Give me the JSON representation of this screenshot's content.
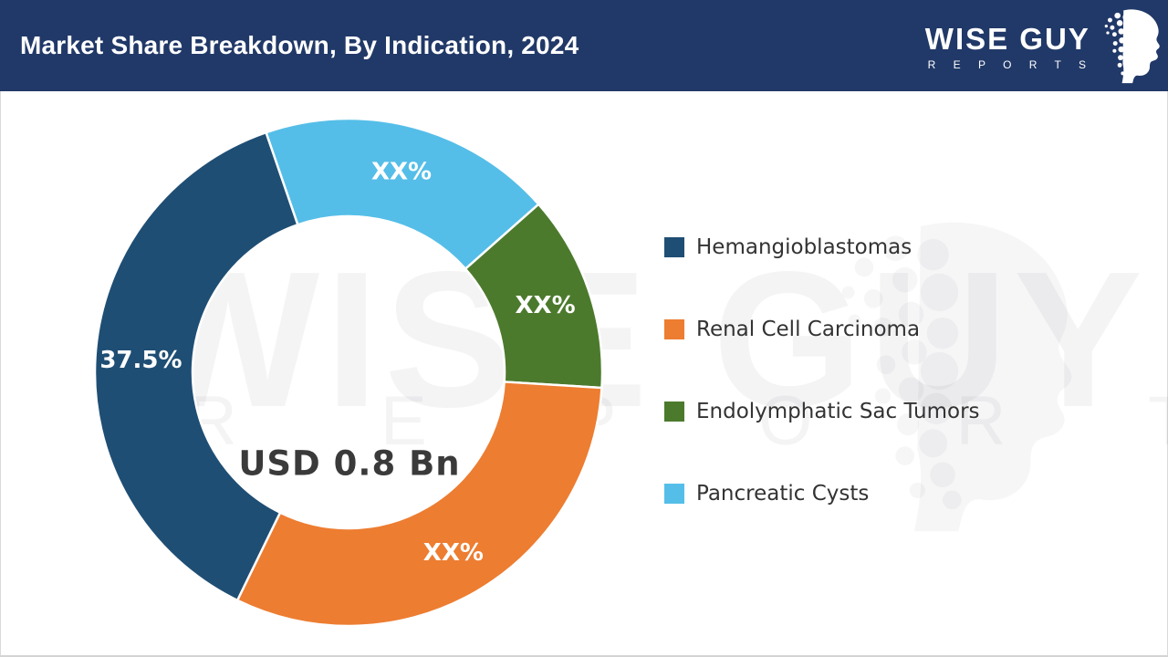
{
  "header": {
    "title": "Market Share Breakdown, By Indication, 2024",
    "logo": {
      "name": "WISE GUY",
      "tagline": "R E P O R T S"
    }
  },
  "watermark": {
    "line1": "WISE GUY",
    "line2": "R E P O R T S"
  },
  "chart_data": {
    "type": "donut",
    "title": "Market Share Breakdown, By Indication, 2024",
    "center_label": "USD 0.8 Bn",
    "start_angle_deg": -19,
    "direction": "clockwise",
    "legend_position": "right",
    "segments": [
      {
        "label": "Pancreatic Cysts",
        "display_value": "XX%",
        "value_pct": 18.75,
        "color": "#55BEE8"
      },
      {
        "label": "Endolymphatic Sac Tumors",
        "display_value": "XX%",
        "value_pct": 12.5,
        "color": "#4C7A2D"
      },
      {
        "label": "Renal Cell Carcinoma",
        "display_value": "XX%",
        "value_pct": 31.25,
        "color": "#ED7D31"
      },
      {
        "label": "Hemangioblastomas",
        "display_value": "37.5%",
        "value_pct": 37.5,
        "color": "#1F4E74"
      }
    ],
    "legend": [
      "Hemangioblastomas",
      "Renal Cell Carcinoma",
      "Endolymphatic Sac Tumors",
      "Pancreatic Cysts"
    ]
  }
}
